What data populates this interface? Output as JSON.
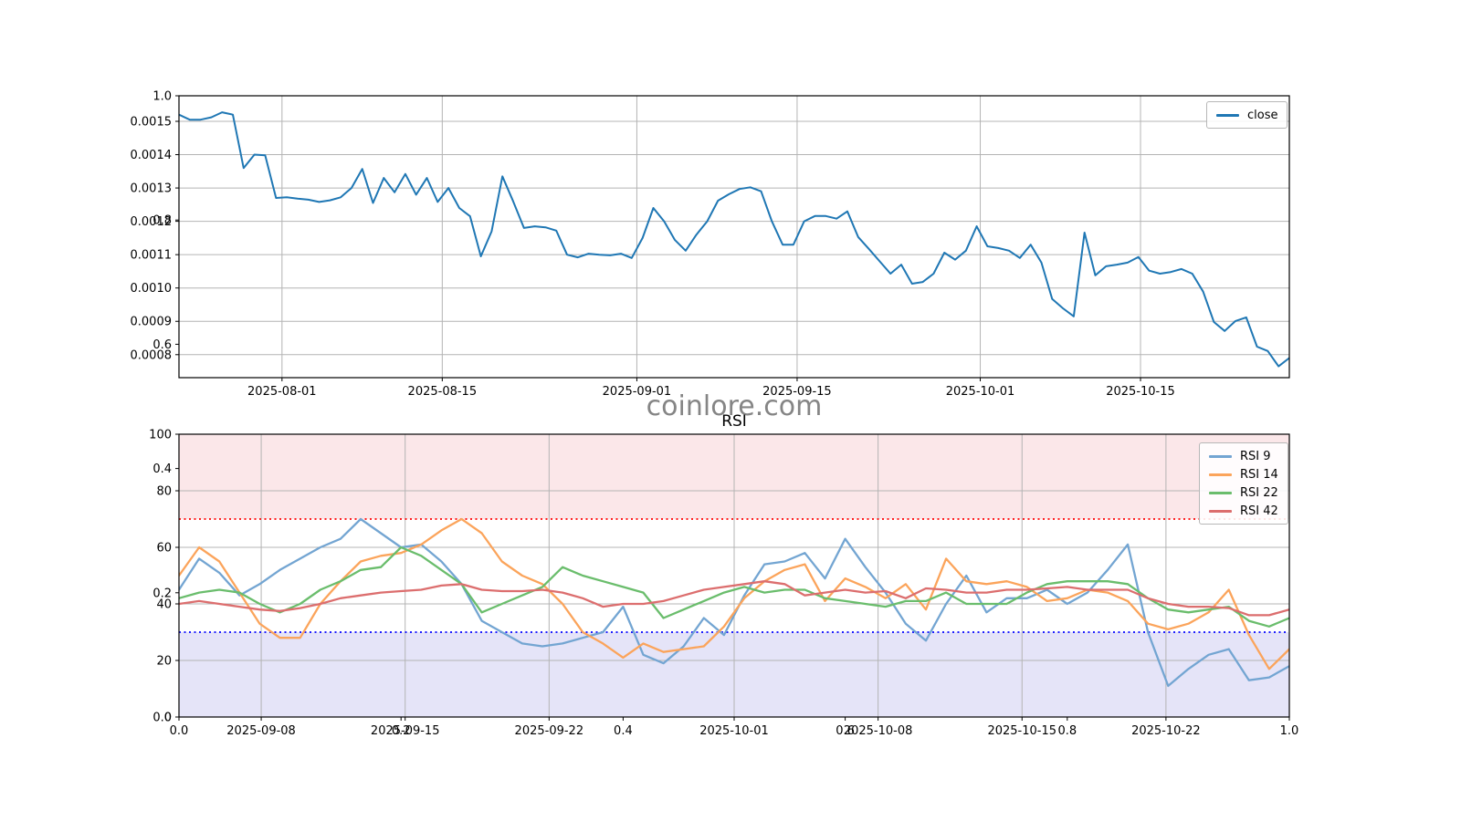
{
  "watermark": "coinlore.com",
  "colors": {
    "grid": "#b4b4b4",
    "spine": "#000000",
    "watermark": "#858585",
    "overbought_band": "#fbe7e9",
    "oversold_band": "#e5e4f8",
    "overbought_line": "#ff0000",
    "oversold_line": "#0000ff"
  },
  "overlay_axis": {
    "y_tick_labels": [
      "1.0",
      "0.8",
      "0.6",
      "0.4",
      "0.2",
      "0.0"
    ],
    "x_tick_labels": [
      "0.0",
      "0.2",
      "0.4",
      "0.6",
      "0.8",
      "1.0"
    ]
  },
  "chart_data": [
    {
      "type": "line",
      "title": "",
      "legend_position": "upper right",
      "grid": true,
      "x_start": "2025-07-23",
      "x_end": "2025-10-28",
      "x_tick_labels": [
        "2025-08-01",
        "2025-08-15",
        "2025-09-01",
        "2025-09-15",
        "2025-10-01",
        "2025-10-15"
      ],
      "ylim": [
        0.000731,
        0.0015766
      ],
      "y_ticks": [
        0.0008,
        0.0009,
        0.001,
        0.0011,
        0.0012,
        0.0013,
        0.0014,
        0.0015
      ],
      "y_tick_labels": [
        "0.0008",
        "0.0009",
        "0.0010",
        "0.0011",
        "0.0012",
        "0.0013",
        "0.0014",
        "0.0015"
      ],
      "series": [
        {
          "name": "close",
          "color": "#1f77b4",
          "width": 2,
          "values": [
            0.00152,
            0.001505,
            0.001505,
            0.001512,
            0.001527,
            0.00152,
            0.00136,
            0.0014,
            0.001398,
            0.00127,
            0.001272,
            0.001268,
            0.001265,
            0.001258,
            0.001263,
            0.001272,
            0.0013,
            0.001357,
            0.001255,
            0.00133,
            0.001287,
            0.001342,
            0.00128,
            0.00133,
            0.001258,
            0.0013,
            0.00124,
            0.001215,
            0.001095,
            0.00117,
            0.001335,
            0.00126,
            0.00118,
            0.001185,
            0.001182,
            0.001172,
            0.0011,
            0.001092,
            0.001103,
            0.0011,
            0.001098,
            0.001103,
            0.00109,
            0.00115,
            0.00124,
            0.0012,
            0.001144,
            0.001112,
            0.00116,
            0.0012,
            0.001262,
            0.001281,
            0.001297,
            0.001302,
            0.00129,
            0.0012,
            0.00113,
            0.00113,
            0.0012,
            0.001216,
            0.001216,
            0.001208,
            0.00123,
            0.001153,
            0.001117,
            0.00108,
            0.001043,
            0.00107,
            0.001013,
            0.001018,
            0.001043,
            0.001106,
            0.001085,
            0.001112,
            0.001185,
            0.001125,
            0.00112,
            0.001112,
            0.00109,
            0.00113,
            0.001076,
            0.000967,
            0.000939,
            0.000915,
            0.001166,
            0.001038,
            0.001065,
            0.00107,
            0.001076,
            0.001093,
            0.001052,
            0.001043,
            0.001048,
            0.001057,
            0.001043,
            0.000989,
            0.000898,
            0.000871,
            0.000901,
            0.000912,
            0.000824,
            0.000811,
            0.000765,
            0.00079
          ]
        }
      ]
    },
    {
      "type": "line",
      "title": "RSI",
      "legend_position": "upper right",
      "grid": true,
      "x_start": "2025-09-04",
      "x_end": "2025-10-28",
      "x_tick_labels": [
        "2025-09-08",
        "2025-09-15",
        "2025-09-22",
        "2025-10-01",
        "2025-10-08",
        "2025-10-15",
        "2025-10-22"
      ],
      "ylim": [
        0,
        100
      ],
      "y_ticks": [
        0,
        20,
        40,
        60,
        80,
        100
      ],
      "y_tick_labels": [
        "0",
        "20",
        "40",
        "60",
        "80",
        "100"
      ],
      "bands": [
        {
          "name": "overbought-band",
          "from": 70,
          "to": 100,
          "color": "#fbe7e9"
        },
        {
          "name": "oversold-band",
          "from": 0,
          "to": 30,
          "color": "#e5e4f8"
        }
      ],
      "levels": [
        {
          "name": "overbought-level",
          "value": 70,
          "color": "#ff0000"
        },
        {
          "name": "oversold-level",
          "value": 30,
          "color": "#0000ff"
        }
      ],
      "series": [
        {
          "name": "RSI 9",
          "color": "#73a5d2",
          "width": 2.3,
          "values": [
            45,
            56,
            51,
            43,
            47,
            52,
            56,
            60,
            63,
            70,
            65,
            60,
            61,
            55,
            47,
            34,
            30,
            26,
            25,
            26,
            28,
            30,
            39,
            22,
            19,
            25,
            35,
            29,
            43,
            54,
            55,
            58,
            49,
            63,
            53,
            44,
            33,
            27,
            40,
            50,
            37,
            42,
            42,
            45,
            40,
            44,
            52,
            61,
            30,
            11,
            17,
            22,
            24,
            13,
            14,
            18
          ]
        },
        {
          "name": "RSI 14",
          "color": "#fba45b",
          "width": 2.3,
          "values": [
            50,
            60,
            55,
            44,
            33,
            28,
            28,
            40,
            48,
            55,
            57,
            58,
            61,
            66,
            70,
            65,
            55,
            50,
            47,
            40,
            30,
            26,
            21,
            26,
            23,
            24,
            25,
            32,
            42,
            48,
            52,
            54,
            41,
            49,
            46,
            42,
            47,
            38,
            56,
            48,
            47,
            48,
            46,
            41,
            42,
            45,
            44,
            41,
            33,
            31,
            33,
            37,
            45,
            29,
            17,
            24
          ]
        },
        {
          "name": "RSI 22",
          "color": "#6abd6c",
          "width": 2.3,
          "values": [
            42,
            44,
            45,
            44,
            40,
            37,
            40,
            45,
            48,
            52,
            53,
            60,
            57,
            52,
            47,
            37,
            40,
            43,
            46,
            53,
            50,
            48,
            46,
            44,
            35,
            38,
            41,
            44,
            46,
            44,
            45,
            45,
            42,
            41,
            40,
            39,
            41,
            41,
            44,
            40,
            40,
            40,
            44,
            47,
            48,
            48,
            48,
            47,
            42,
            38,
            37,
            38,
            39,
            34,
            32,
            35
          ]
        },
        {
          "name": "RSI 42",
          "color": "#dc6e6e",
          "width": 2.3,
          "values": [
            40,
            41,
            40,
            39,
            38,
            37.5,
            38.5,
            40,
            42,
            43,
            44,
            44.5,
            45,
            46.5,
            47,
            45,
            44.5,
            44.5,
            45,
            44,
            42,
            39,
            40,
            40,
            41,
            43,
            45,
            46,
            47,
            48,
            47,
            43,
            44,
            45,
            44,
            44.5,
            42,
            45.5,
            45,
            44,
            44,
            45,
            45,
            45.5,
            46,
            45,
            45,
            45,
            42,
            40,
            39,
            39,
            38.5,
            36,
            36,
            38
          ]
        }
      ]
    }
  ]
}
